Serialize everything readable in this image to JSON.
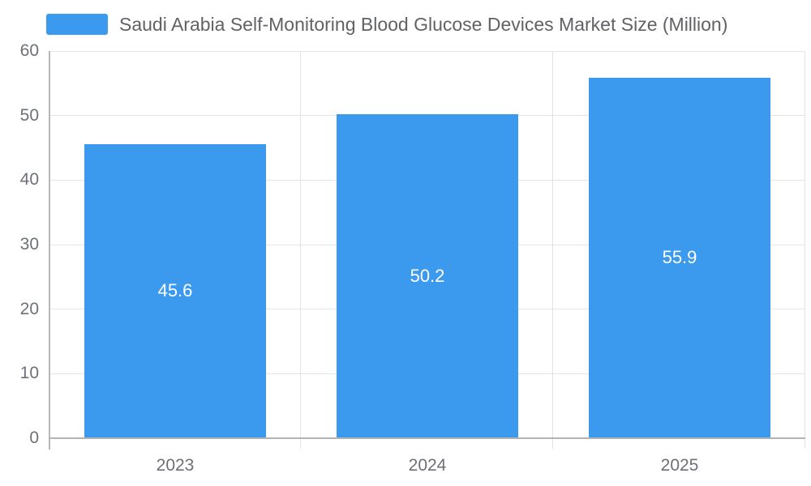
{
  "legend": {
    "label": "Saudi Arabia Self-Monitoring Blood Glucose Devices Market Size (Million)",
    "swatch_color": "#3B99EE"
  },
  "chart_data": {
    "type": "bar",
    "title": "Saudi Arabia Self-Monitoring Blood Glucose Devices Market Size (Million)",
    "categories": [
      "2023",
      "2024",
      "2025"
    ],
    "values": [
      45.6,
      50.2,
      55.9
    ],
    "value_labels": [
      "45.6",
      "50.2",
      "55.9"
    ],
    "xlabel": "",
    "ylabel": "",
    "ylim": [
      0,
      60
    ],
    "yticks": [
      0,
      10,
      20,
      30,
      40,
      50,
      60
    ],
    "grid": true,
    "legend_position": "top-left",
    "value_label_position": "inside-center",
    "colors": {
      "bar": "#3B99EE",
      "value_label_text": "#FFFFFF",
      "gridline": "#E5E5E5",
      "category_boundary_line": "#E2E2E2",
      "axis_line": "#B3B3B3",
      "tick_label_text": "#6E7079",
      "legend_text": "#606266",
      "background": "#FFFFFF"
    }
  }
}
